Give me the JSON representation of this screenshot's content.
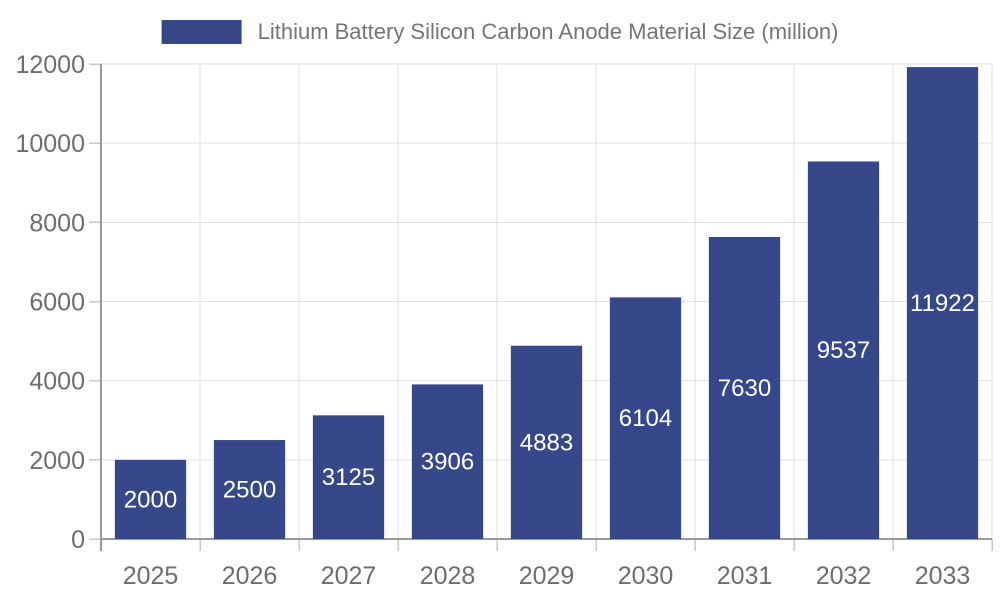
{
  "legend": {
    "label": "Lithium Battery Silicon Carbon Anode Material Size (million)",
    "swatch_color": "#36488A"
  },
  "chart_data": {
    "type": "bar",
    "title": "Lithium Battery Silicon Carbon Anode Material Size (million)",
    "categories": [
      "2025",
      "2026",
      "2027",
      "2028",
      "2029",
      "2030",
      "2031",
      "2032",
      "2033"
    ],
    "values": [
      2000,
      2500,
      3125,
      3906,
      4883,
      6104,
      7630,
      9537,
      11922
    ],
    "xlabel": "",
    "ylabel": "",
    "ylim": [
      0,
      12000
    ],
    "yticks": [
      0,
      2000,
      4000,
      6000,
      8000,
      10000,
      12000
    ],
    "grid": true,
    "legend_position": "top-center",
    "bar_color": "#36488A",
    "value_label_color": "#FFFFFF",
    "axis_text_color": "#6E6E6E",
    "grid_color": "#E2E2E2",
    "tick_color": "#C9C9C9",
    "axis_line_color": "#999999"
  }
}
